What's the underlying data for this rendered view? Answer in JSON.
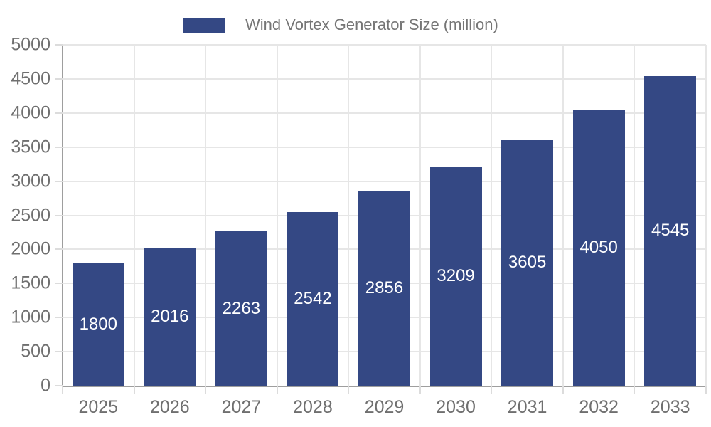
{
  "legend": {
    "label": "Wind Vortex Generator Size (million)"
  },
  "chart_data": {
    "type": "bar",
    "title": "Wind Vortex Generator Size (million)",
    "categories": [
      "2025",
      "2026",
      "2027",
      "2028",
      "2029",
      "2030",
      "2031",
      "2032",
      "2033"
    ],
    "series": [
      {
        "name": "Wind Vortex Generator Size (million)",
        "values": [
          1800,
          2016,
          2263,
          2542,
          2856,
          3209,
          3605,
          4050,
          4545
        ]
      }
    ],
    "xlabel": "",
    "ylabel": "",
    "ylim": [
      0,
      5000
    ],
    "ytick_step": 500,
    "grid": true,
    "legend_position": "top",
    "value_labels": "inside-center",
    "colors": {
      "bar": "#344884",
      "value_label": "#ffffff",
      "axis": "#9e9e9e",
      "gridline": "#e6e6e6",
      "outer_tick": "#dcdcdc",
      "tick_label": "#6f6f6f",
      "legend_text": "#757575"
    }
  }
}
